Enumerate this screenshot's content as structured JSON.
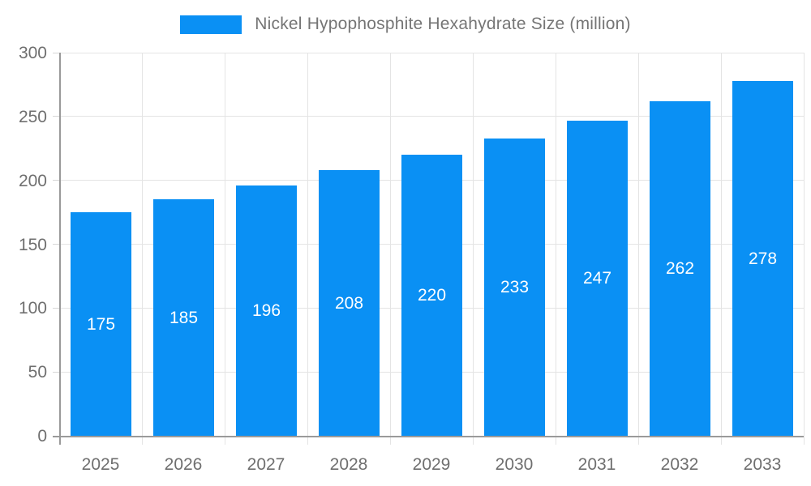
{
  "legend": {
    "label": "Nickel Hypophosphite Hexahydrate Size (million)"
  },
  "chart_data": {
    "type": "bar",
    "title": "Nickel Hypophosphite Hexahydrate Size (million)",
    "series_name": "Nickel Hypophosphite Hexahydrate Size (million)",
    "categories": [
      "2025",
      "2026",
      "2027",
      "2028",
      "2029",
      "2030",
      "2031",
      "2032",
      "2033"
    ],
    "values": [
      175,
      185,
      196,
      208,
      220,
      233,
      247,
      262,
      278
    ],
    "xlabel": "",
    "ylabel": "",
    "ylim": [
      0,
      300
    ],
    "y_ticks": [
      0,
      50,
      100,
      150,
      200,
      250,
      300
    ],
    "grid": true,
    "legend_position": "top",
    "value_label_position": "inside-center",
    "colors": {
      "bar": "#0a90f4",
      "axis_line": "#9a9a9a",
      "gridline": "#e4e4e4",
      "tick_color": "#d6d6d6",
      "axis_label": "#6f6f6f",
      "legend_label": "#757575",
      "value_label": "#ffffff",
      "background": "#ffffff"
    }
  }
}
